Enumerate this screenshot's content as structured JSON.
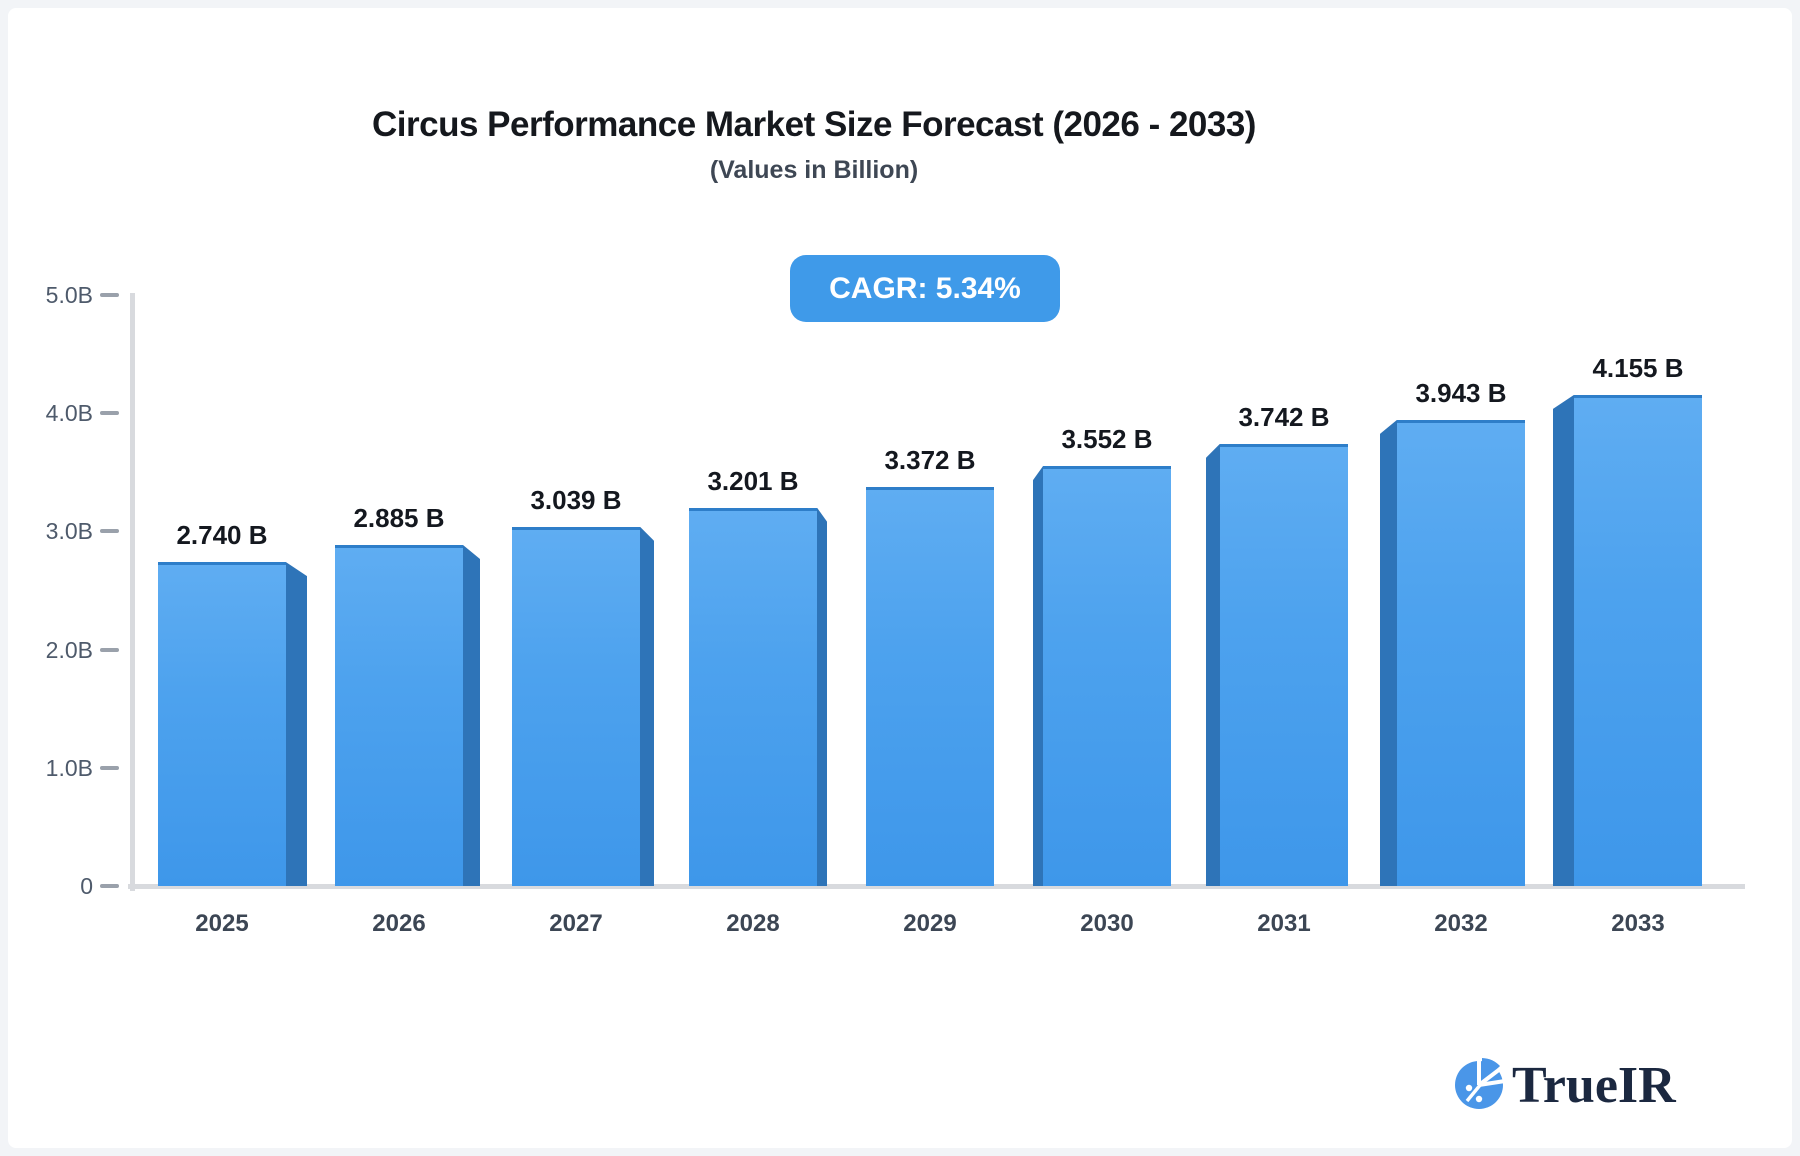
{
  "page": {
    "background": "#f2f4f7",
    "card_background": "#ffffff"
  },
  "header": {
    "title": "Circus Performance Market Size Forecast (2026 - 2033)",
    "subtitle": "(Values in Billion)"
  },
  "badge": {
    "label": "CAGR: 5.34%",
    "background": "#3f9ae9",
    "text_color": "#ffffff"
  },
  "chart_data": {
    "type": "bar",
    "title": "Circus Performance Market Size Forecast (2026 - 2033)",
    "subtitle": "(Values in Billion)",
    "cagr_annotation": "CAGR: 5.34%",
    "categories": [
      "2025",
      "2026",
      "2027",
      "2028",
      "2029",
      "2030",
      "2031",
      "2032",
      "2033"
    ],
    "series": [
      {
        "name": "Circus Performance Market Size (Billion)",
        "values": [
          2.74,
          2.885,
          3.039,
          3.201,
          3.372,
          3.552,
          3.742,
          3.943,
          4.155
        ]
      }
    ],
    "value_labels": [
      "2.740 B",
      "2.885 B",
      "3.039 B",
      "3.201 B",
      "3.372 B",
      "3.552 B",
      "3.742 B",
      "3.943 B",
      "4.155 B"
    ],
    "xlabel": "",
    "ylabel": "",
    "ylim": [
      0,
      5
    ],
    "ytick_values": [
      0,
      1,
      2,
      3,
      4,
      5
    ],
    "ytick_labels": [
      "0",
      "1.0B",
      "2.0B",
      "3.0B",
      "4.0B",
      "5.0B"
    ],
    "grid": false,
    "legend_position": "none",
    "bar_style": "3d-extruded",
    "colors": {
      "bar_front_top": "#5fadf2",
      "bar_front_bottom": "#3e97ea",
      "bar_top_edge": "#2e7ec9",
      "bar_side": "#2e74b8",
      "axis_line": "#d8dade",
      "tick_dash": "#9aa1ab",
      "ytick_text": "#4e5a6b",
      "xtick_text": "#3c4654",
      "value_label_text": "#14181f"
    }
  },
  "logo": {
    "text": "TrueIR",
    "icon": "pie-chart-icon",
    "icon_color": "#4a96e8",
    "text_color": "#1b2840"
  }
}
